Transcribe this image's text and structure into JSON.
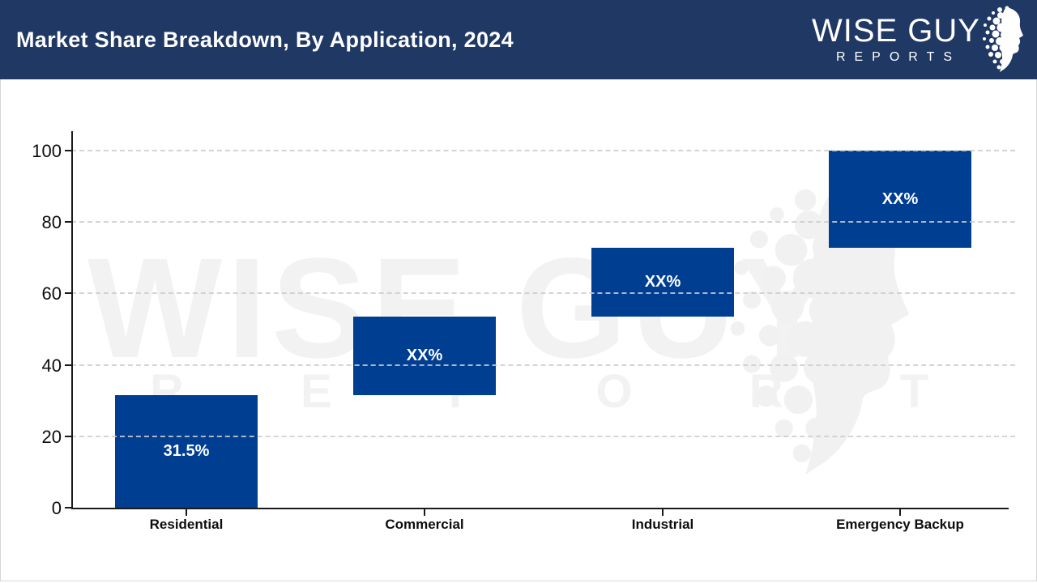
{
  "header": {
    "title": "Market Share Breakdown, By Application, 2024",
    "brand": {
      "name": "WISE GUY",
      "sub": "REPORTS"
    }
  },
  "watermark": {
    "line1": "WISE GUY",
    "line2": "R E P O R T S"
  },
  "chart_data": {
    "type": "bar",
    "variant": "waterfall-segments",
    "title": "Market Share Breakdown, By Application, 2024",
    "categories": [
      "Residential",
      "Commercial",
      "Industrial",
      "Emergency Backup"
    ],
    "segments": [
      {
        "category": "Residential",
        "start": 0,
        "end": 31.5,
        "label": "31.5%"
      },
      {
        "category": "Commercial",
        "start": 31.5,
        "end": 53.5,
        "label": "XX%"
      },
      {
        "category": "Industrial",
        "start": 53.5,
        "end": 72.7,
        "label": "XX%"
      },
      {
        "category": "Emergency Backup",
        "start": 72.7,
        "end": 100,
        "label": "XX%"
      }
    ],
    "ylim": [
      0,
      100
    ],
    "yticks": [
      0,
      20,
      40,
      60,
      80,
      100
    ],
    "xlabel": "",
    "ylabel": "",
    "grid": "dashed-horizontal",
    "legend": "none",
    "bar_color": "#003e92",
    "bar_label_color": "#ffffff"
  },
  "colors": {
    "header_bg": "#1f3864",
    "bar": "#003e92",
    "grid": "#d9d9d9",
    "axis": "#1a1a1a",
    "watermark": "#f2f2f2",
    "panel_border": "#d6d6d6"
  }
}
